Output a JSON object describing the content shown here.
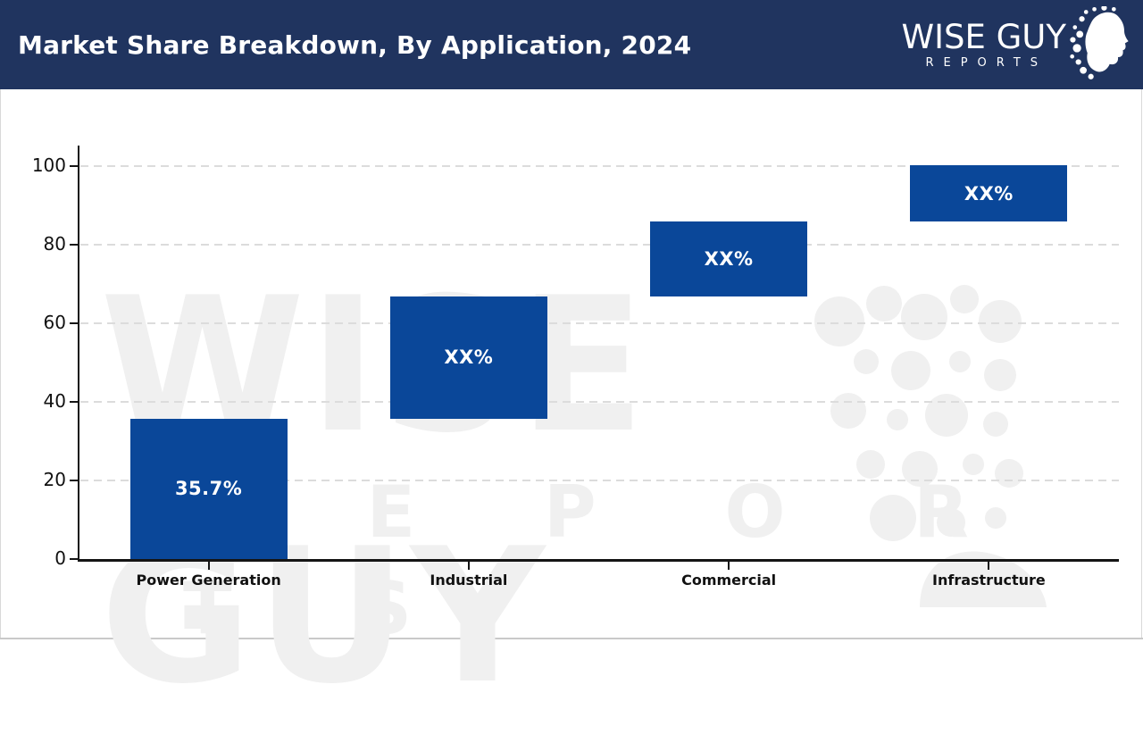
{
  "header": {
    "title": "Market Share Breakdown, By Application, 2024",
    "logo": {
      "line1": "WISE GUY",
      "line2": "REPORTS"
    }
  },
  "watermark": {
    "line1": "WISE GUY",
    "line2": "R E P O R T S"
  },
  "colors": {
    "header_bg": "#20345f",
    "bar": "#0a4799",
    "grid": "#dcdcdc",
    "axis": "#151515",
    "watermark": "#f0f0f0",
    "bar_label": "#ffffff"
  },
  "chart_data": {
    "type": "bar",
    "subtype": "waterfall",
    "title": "Market Share Breakdown, By Application, 2024",
    "categories": [
      "Power Generation",
      "Industrial",
      "Commercial",
      "Infrastructure"
    ],
    "segments": [
      {
        "category": "Power Generation",
        "start": 0,
        "end": 35.7,
        "label": "35.7%"
      },
      {
        "category": "Industrial",
        "start": 35.7,
        "end": 66.8,
        "label": "XX%"
      },
      {
        "category": "Commercial",
        "start": 66.8,
        "end": 85.8,
        "label": "XX%"
      },
      {
        "category": "Infrastructure",
        "start": 85.8,
        "end": 100.3,
        "label": "XX%"
      }
    ],
    "yticks": [
      0,
      20,
      40,
      60,
      80,
      100
    ],
    "ylim": [
      0,
      105
    ],
    "xlabel": "",
    "ylabel": "",
    "grid": "horizontal-dashed",
    "legend": "none"
  }
}
